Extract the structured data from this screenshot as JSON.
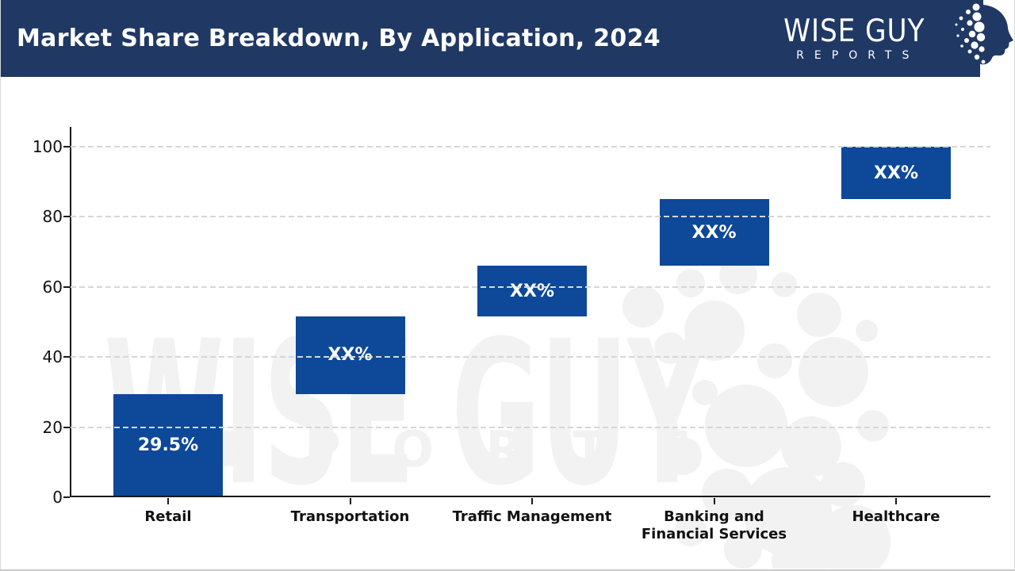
{
  "header": {
    "title": "Market Share Breakdown, By Application, 2024",
    "logo": {
      "name": "WISE GUY",
      "sub": "REPORTS"
    }
  },
  "watermark": {
    "name": "WISE GUY",
    "sub": "REPORTS"
  },
  "chart_data": {
    "type": "bar",
    "subtype": "floating-waterfall",
    "title": "Market Share Breakdown, By Application, 2024",
    "xlabel": "",
    "ylabel": "",
    "ylim": [
      0,
      105
    ],
    "yticks": [
      0,
      20,
      40,
      60,
      80,
      100
    ],
    "ytick_labels": [
      "0",
      "20",
      "40",
      "60",
      "80",
      "100"
    ],
    "grid": "horizontal-dashed",
    "legend": "none",
    "bar_color": "#0d4899",
    "bar_label_color": "#ffffff",
    "categories": [
      "Retail",
      "Transportation",
      "Traffic Management",
      "Banking and Financial Services",
      "Healthcare"
    ],
    "category_label_lines": [
      [
        "Retail"
      ],
      [
        "Transportation"
      ],
      [
        "Traffic Management"
      ],
      [
        "Banking and",
        "Financial Services"
      ],
      [
        "Healthcare"
      ]
    ],
    "segments": [
      {
        "category": "Retail",
        "start": 0,
        "end": 29.5,
        "value": 29.5,
        "label": "29.5%"
      },
      {
        "category": "Transportation",
        "start": 29.5,
        "end": 51.5,
        "value": 22,
        "label": "XX%"
      },
      {
        "category": "Traffic Management",
        "start": 51.5,
        "end": 66,
        "value": 14.5,
        "label": "XX%"
      },
      {
        "category": "Banking and Financial Services",
        "start": 66,
        "end": 85,
        "value": 19,
        "label": "XX%"
      },
      {
        "category": "Healthcare",
        "start": 85,
        "end": 100,
        "value": 15,
        "label": "XX%"
      }
    ]
  },
  "colors": {
    "header_bg": "#203864",
    "bar": "#0d4899",
    "gridline": "#d7d7d7",
    "axis": "#1a1a1a",
    "watermark": "#f2f2f2"
  }
}
